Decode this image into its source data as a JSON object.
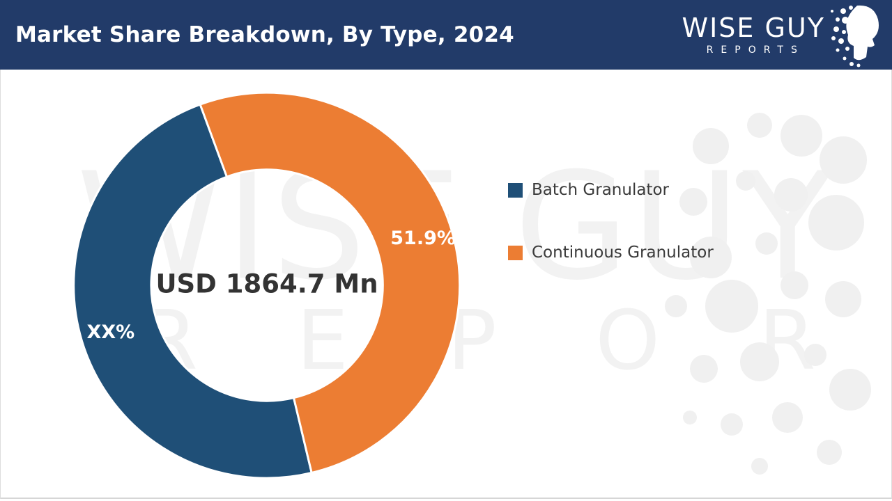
{
  "header": {
    "title": "Market Share Breakdown, By Type, 2024",
    "logo": {
      "primary": "WISE GUY",
      "secondary": "REPORTS"
    }
  },
  "chart_data": {
    "type": "pie",
    "subtype": "donut",
    "title": "Market Share Breakdown, By Type, 2024",
    "center_label": "USD 1864.7 Mn",
    "unit": "percent market share",
    "start_angle_deg": 166.6,
    "direction": "clockwise",
    "inner_radius_ratio": 0.6,
    "series": [
      {
        "name": "Batch Granulator",
        "value": 48.1,
        "label": "XX%",
        "color": "#1F4F77"
      },
      {
        "name": "Continuous Granulator",
        "value": 51.9,
        "label": "51.9%",
        "color": "#EC7D33"
      }
    ],
    "legend_position": "right",
    "legend_labels": [
      "Batch Granulator",
      "Continuous Granulator"
    ]
  },
  "watermark": {
    "primary": "WISE GUY",
    "secondary": "R E P O R T S"
  },
  "colors": {
    "header_bg": "#223B69",
    "segment_blue": "#1F4F77",
    "segment_orange": "#EC7D33",
    "center_text": "#333333",
    "legend_text": "#3A3A3A",
    "segment_label_text": "#FFFFFF",
    "hairline": "#D6D6D6",
    "watermark": "#F2F2F2"
  }
}
